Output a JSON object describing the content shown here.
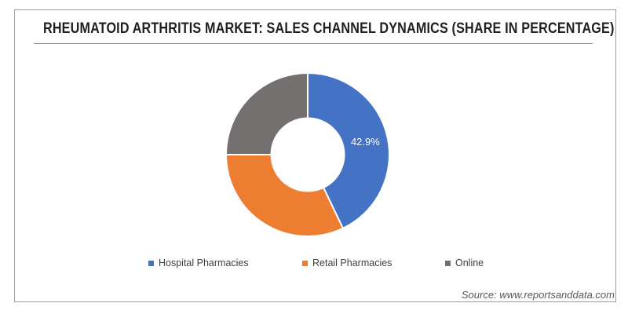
{
  "title": "RHEUMATOID ARTHRITIS MARKET: SALES CHANNEL DYNAMICS (SHARE IN PERCENTAGE)",
  "source": "Source: www.reportsanddata.com",
  "chart_data": {
    "type": "pie",
    "subtype": "donut",
    "title": "RHEUMATOID ARTHRITIS MARKET: SALES CHANNEL DYNAMICS (SHARE IN PERCENTAGE)",
    "categories": [
      "Hospital Pharmacies",
      "Retail Pharmacies",
      "Online"
    ],
    "values": [
      42.9,
      32.1,
      25.0
    ],
    "labels": [
      "42.9%",
      null,
      null
    ],
    "colors": [
      "#4472C4",
      "#ED7D31",
      "#757070"
    ],
    "label_color": "#ffffff",
    "start_angle_deg": 0,
    "direction": "clockwise",
    "inner_radius_ratio": 0.447,
    "slice_gap_color": "#ffffff",
    "legend_position": "bottom"
  },
  "style": {
    "accent_underline": "#c97c58",
    "frame_border": "#9d9d9d",
    "title_color": "#1f1f1f",
    "legend_text_color": "#3f3f3f",
    "source_text_color": "#595959"
  }
}
